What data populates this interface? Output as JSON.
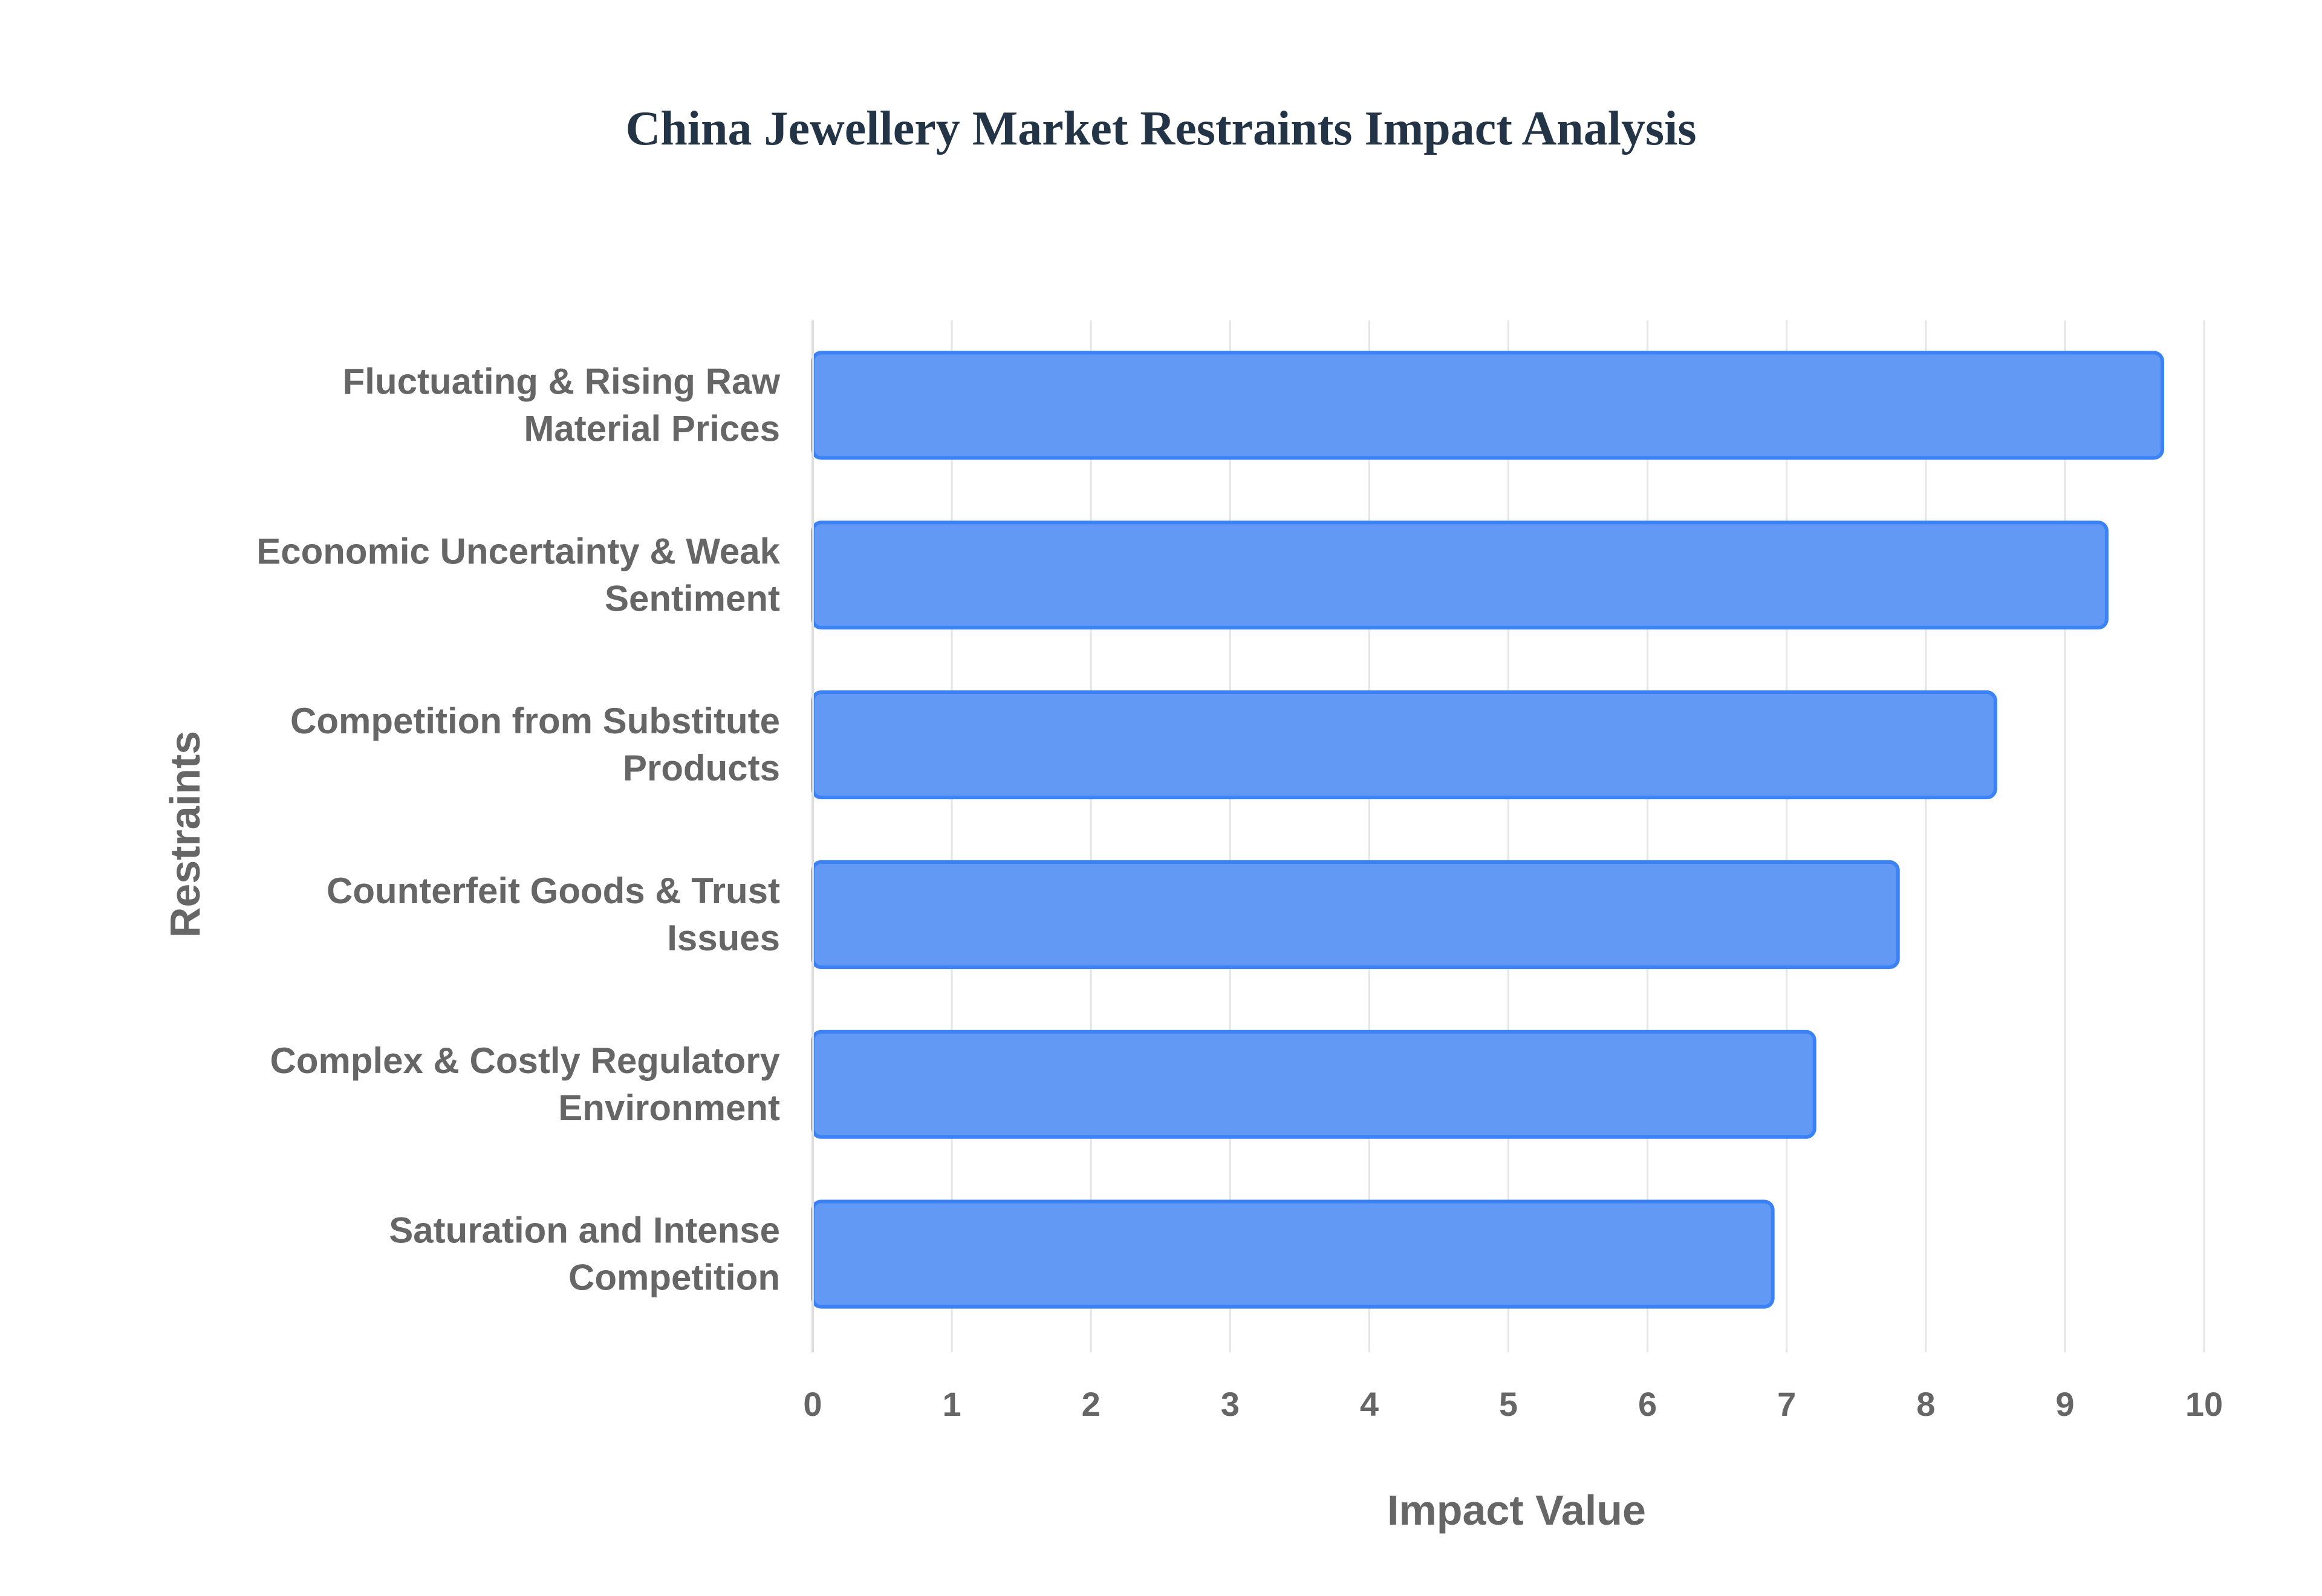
{
  "chart_data": {
    "type": "bar",
    "orientation": "horizontal",
    "title": "China Jewellery Market Restraints Impact Analysis",
    "xlabel": "Impact Value",
    "ylabel": "Restraints",
    "categories": [
      [
        "Fluctuating & Rising Raw",
        "Material Prices"
      ],
      [
        "Economic Uncertainty & Weak",
        "Sentiment"
      ],
      [
        "Competition from Substitute",
        "Products"
      ],
      [
        "Counterfeit Goods & Trust",
        "Issues"
      ],
      [
        "Complex & Costly Regulatory",
        "Environment"
      ],
      [
        "Saturation and Intense",
        "Competition"
      ]
    ],
    "values": [
      9.7,
      9.3,
      8.5,
      7.8,
      7.2,
      6.9
    ],
    "xlim": [
      0,
      10
    ],
    "xticks": [
      "0",
      "1",
      "2",
      "3",
      "4",
      "5",
      "6",
      "7",
      "8",
      "9",
      "10"
    ],
    "grid": "vertical",
    "legend": "none",
    "bar_fill": "#6199f5",
    "bar_stroke": "#3b82f6",
    "grid_color": "#e5e5e5",
    "axis_color": "#dddddd"
  }
}
